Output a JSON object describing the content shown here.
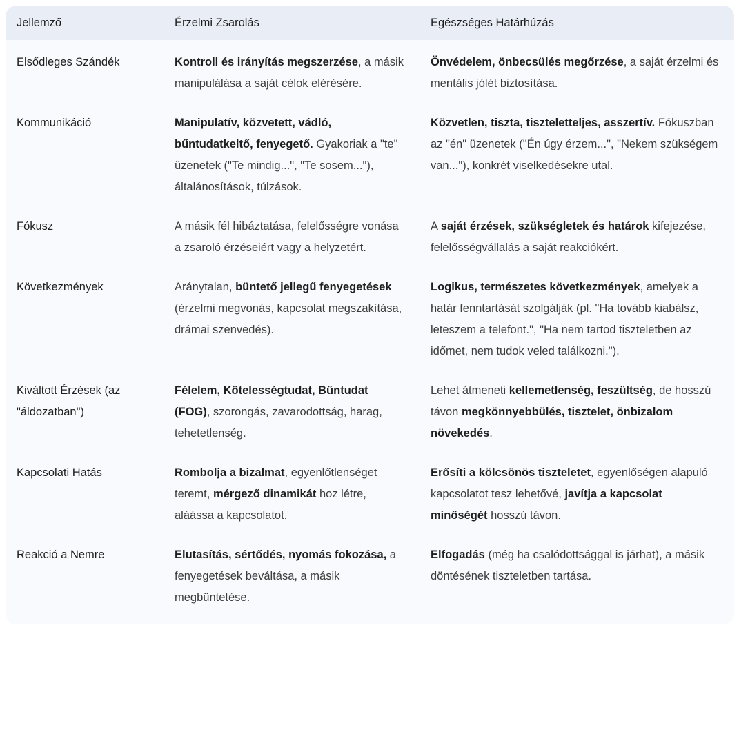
{
  "table": {
    "headers": [
      "Jellemző",
      "Érzelmi Zsarolás",
      "Egészséges Határhúzás"
    ],
    "rows": [
      {
        "feature": "Elsődleges Szándék",
        "blackmail": [
          {
            "text": "Kontroll és irányítás megszerzése",
            "bold": true
          },
          {
            "text": ", a másik manipulálása a saját célok elérésére.",
            "bold": false
          }
        ],
        "boundary": [
          {
            "text": "Önvédelem, önbecsülés megőrzése",
            "bold": true
          },
          {
            "text": ", a saját érzelmi és mentális jólét biztosítása.",
            "bold": false
          }
        ]
      },
      {
        "feature": "Kommunikáció",
        "blackmail": [
          {
            "text": "Manipulatív, közvetett, vádló, bűntudatkeltő, fenyegető.",
            "bold": true
          },
          {
            "text": " Gyakoriak a \"te\" üzenetek (\"Te mindig...\", \"Te sosem...\"), általánosítások, túlzások.",
            "bold": false
          }
        ],
        "boundary": [
          {
            "text": "Közvetlen, tiszta, tiszteletteljes, asszertív.",
            "bold": true
          },
          {
            "text": " Fókuszban az \"én\" üzenetek (\"Én úgy érzem...\", \"Nekem szükségem van...\"), konkrét viselkedésekre utal.",
            "bold": false
          }
        ]
      },
      {
        "feature": "Fókusz",
        "blackmail": [
          {
            "text": "A másik fél hibáztatása, felelősségre vonása a zsaroló érzéseiért vagy a helyzetért.",
            "bold": false
          }
        ],
        "boundary": [
          {
            "text": "A ",
            "bold": false
          },
          {
            "text": "saját érzések, szükségletek és határok",
            "bold": true
          },
          {
            "text": " kifejezése, felelősségvállalás a saját reakciókért.",
            "bold": false
          }
        ]
      },
      {
        "feature": "Következmények",
        "blackmail": [
          {
            "text": "Aránytalan, ",
            "bold": false
          },
          {
            "text": "büntető jellegű fenyegetések",
            "bold": true
          },
          {
            "text": " (érzelmi megvonás, kapcsolat megszakítása, drámai szenvedés).",
            "bold": false
          }
        ],
        "boundary": [
          {
            "text": "Logikus, természetes következmények",
            "bold": true
          },
          {
            "text": ", amelyek a határ fenntartását szolgálják (pl. \"Ha tovább kiabálsz, leteszem a telefont.\", \"Ha nem tartod tiszteletben az időmet, nem tudok veled találkozni.\").",
            "bold": false
          }
        ]
      },
      {
        "feature": "Kiváltott Érzések (az \"áldozatban\")",
        "blackmail": [
          {
            "text": "Félelem, Kötelességtudat, Bűntudat (FOG)",
            "bold": true
          },
          {
            "text": ", szorongás, zavarodottság, harag, tehetetlenség.",
            "bold": false
          }
        ],
        "boundary": [
          {
            "text": "Lehet átmeneti ",
            "bold": false
          },
          {
            "text": "kellemetlenség, feszültség",
            "bold": true
          },
          {
            "text": ", de hosszú távon ",
            "bold": false
          },
          {
            "text": "megkönnyebbülés, tisztelet, önbizalom növekedés",
            "bold": true
          },
          {
            "text": ".",
            "bold": false
          }
        ]
      },
      {
        "feature": "Kapcsolati Hatás",
        "blackmail": [
          {
            "text": "Rombolja a bizalmat",
            "bold": true
          },
          {
            "text": ", egyenlőtlenséget teremt, ",
            "bold": false
          },
          {
            "text": "mérgező dinamikát",
            "bold": true
          },
          {
            "text": " hoz létre, aláássa a kapcsolatot.",
            "bold": false
          }
        ],
        "boundary": [
          {
            "text": "Erősíti a kölcsönös tiszteletet",
            "bold": true
          },
          {
            "text": ", egyenlőségen alapuló kapcsolatot tesz lehetővé, ",
            "bold": false
          },
          {
            "text": "javítja a kapcsolat minőségét",
            "bold": true
          },
          {
            "text": " hosszú távon.",
            "bold": false
          }
        ]
      },
      {
        "feature": "Reakció a Nemre",
        "blackmail": [
          {
            "text": "Elutasítás, sértődés, nyomás fokozása,",
            "bold": true
          },
          {
            "text": " a fenyegetések beváltása, a másik megbüntetése.",
            "bold": false
          }
        ],
        "boundary": [
          {
            "text": "Elfogadás",
            "bold": true
          },
          {
            "text": " (még ha csalódottsággal is járhat), a másik döntésének tiszteletben tartása.",
            "bold": false
          }
        ]
      }
    ]
  }
}
